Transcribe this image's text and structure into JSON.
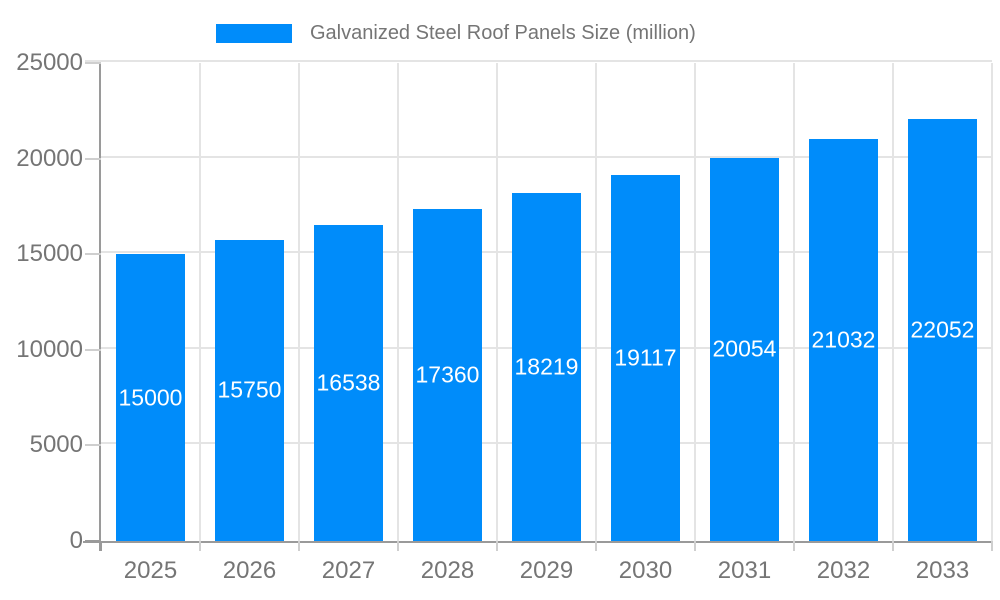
{
  "legend": {
    "label": "Galvanized Steel Roof Panels Size (million)"
  },
  "chart_data": {
    "type": "bar",
    "title": "Galvanized Steel Roof Panels Size (million)",
    "categories": [
      "2025",
      "2026",
      "2027",
      "2028",
      "2029",
      "2030",
      "2031",
      "2032",
      "2033"
    ],
    "values": [
      15000,
      15750,
      16538,
      17360,
      18219,
      19117,
      20054,
      21032,
      22052
    ],
    "xlabel": "",
    "ylabel": "",
    "ylim": [
      0,
      25000
    ],
    "yticks": [
      0,
      5000,
      10000,
      15000,
      20000,
      25000
    ],
    "grid": true,
    "legend_position": "top",
    "value_label_position": "inside-center",
    "colors": {
      "bar": "#008cfa",
      "grid": "#e4e4e4",
      "axis": "#9a9a9a",
      "tick": "#cfcfcf",
      "label": "#757575",
      "value_label": "#ffffff",
      "background": "#ffffff"
    }
  }
}
